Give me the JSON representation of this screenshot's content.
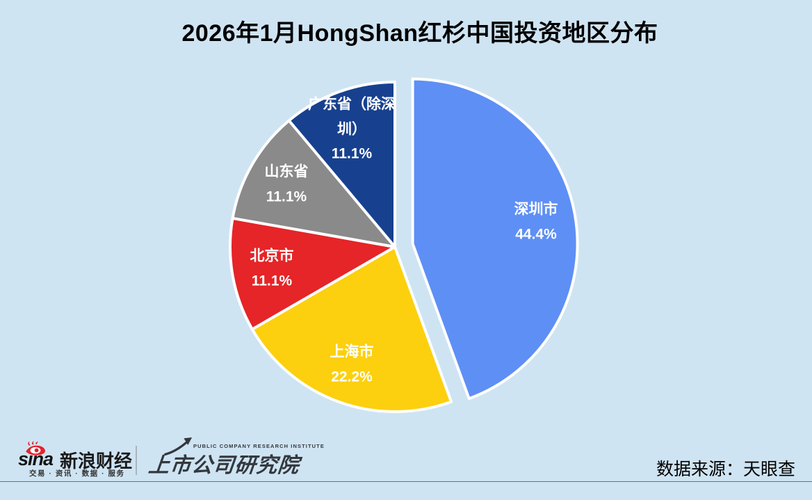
{
  "title": "2026年1月HongShan红杉中国投资地区分布",
  "chart_data": {
    "type": "pie",
    "title": "2026年1月HongShan红杉中国投资地区分布",
    "direction": "clockwise",
    "start_angle_deg": 0,
    "legend": "none",
    "label_color": "#ffffff",
    "slices": [
      {
        "label": "深圳市",
        "value": 44.4,
        "pct_label": "44.4%",
        "color": "#5e8ff5",
        "exploded": true
      },
      {
        "label": "上海市",
        "value": 22.2,
        "pct_label": "22.2%",
        "color": "#fcd00e",
        "exploded": false
      },
      {
        "label": "北京市",
        "value": 11.1,
        "pct_label": "11.1%",
        "color": "#e52528",
        "exploded": false
      },
      {
        "label": "山东省",
        "value": 11.1,
        "pct_label": "11.1%",
        "color": "#8a8a8a",
        "exploded": false
      },
      {
        "label": "广东省（除深圳）",
        "value": 11.1,
        "pct_label": "11.1%",
        "color": "#17418f",
        "exploded": false
      }
    ]
  },
  "footer": {
    "sina_wordmark": "sina",
    "sina_brand": "新浪财经",
    "sina_tagline": "交易 · 资讯 · 数据 · 服务",
    "institute_en": "PUBLIC COMPANY RESEARCH INSTITUTE",
    "institute_cn": "上市公司研究院",
    "source": "数据来源：天眼查"
  },
  "icons": {
    "sina_eye": "eye-icon",
    "institute_arrow": "trend-arrow-icon"
  },
  "colors": {
    "background": "#cfe4f2",
    "sina_red": "#e3232d",
    "institute_dark": "#33383e",
    "rule_gray": "#6b7075"
  }
}
